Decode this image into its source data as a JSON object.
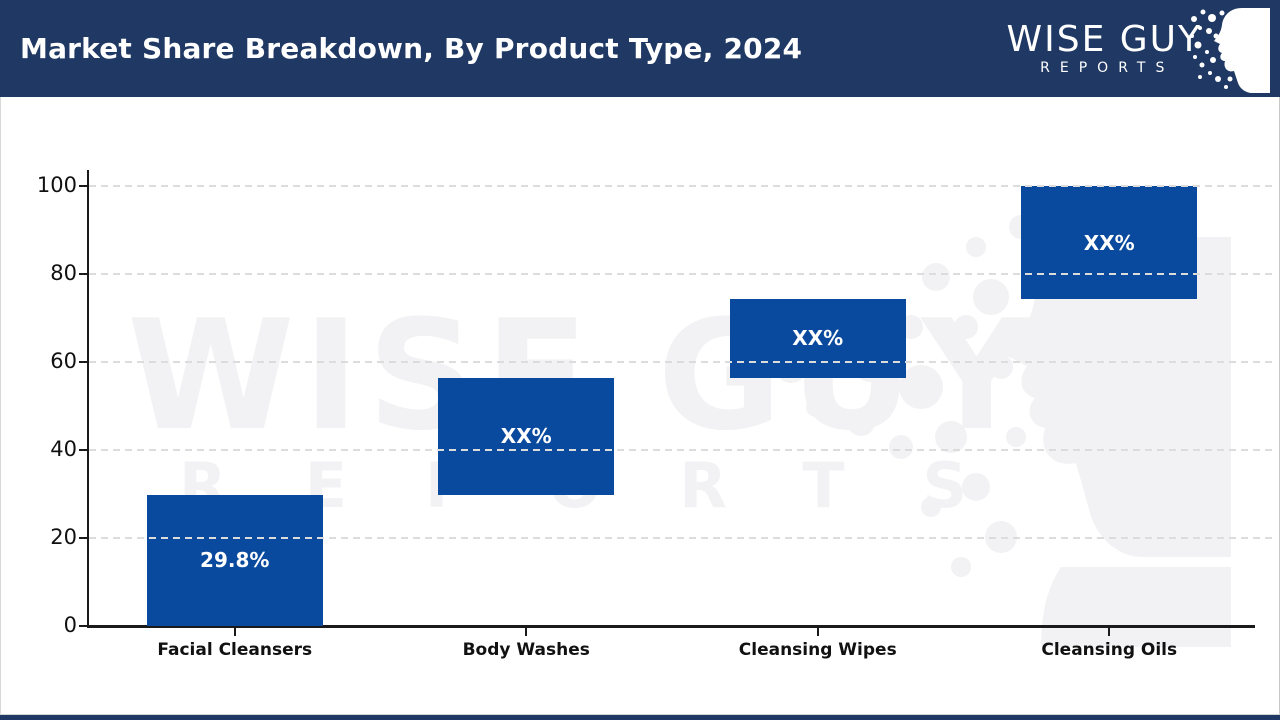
{
  "header": {
    "title": "Market Share Breakdown, By Product Type, 2024",
    "logo": {
      "wordmark": "WISE GUY",
      "subtext": "REPORTS"
    }
  },
  "watermark": {
    "line1": "WISE GUY",
    "line2": "REPORTS"
  },
  "colors": {
    "header_bg": "#1F3864",
    "footer_bg": "#1F3864",
    "bar": "#0A4A9E",
    "bar_label": "#FFFFFF",
    "gridline": "#DCDCDC",
    "axis": "#1A1A1A",
    "watermark": "#F2F2F4"
  },
  "chart_data": {
    "type": "bar",
    "subtype": "waterfall-floating-bars",
    "title": "Market Share Breakdown, By Product Type, 2024",
    "categories": [
      "Facial Cleansers",
      "Body Washes",
      "Cleansing Wipes",
      "Cleansing Oils"
    ],
    "bars": [
      {
        "category": "Facial Cleansers",
        "start": 0,
        "end": 29.8,
        "label": "29.8%"
      },
      {
        "category": "Body Washes",
        "start": 29.8,
        "end": 56.4,
        "label": "XX%"
      },
      {
        "category": "Cleansing Wipes",
        "start": 56.4,
        "end": 74.3,
        "label": "XX%"
      },
      {
        "category": "Cleansing Oils",
        "start": 74.3,
        "end": 100,
        "label": "XX%"
      }
    ],
    "yticks": [
      0,
      20,
      40,
      60,
      80,
      100
    ],
    "ylim": [
      0,
      103.5
    ],
    "xlabel": "",
    "ylabel": "",
    "grid": "horizontal-dashed",
    "legend": "none",
    "bar_color": "#0A4A9E",
    "bar_label_color": "#FFFFFF"
  }
}
